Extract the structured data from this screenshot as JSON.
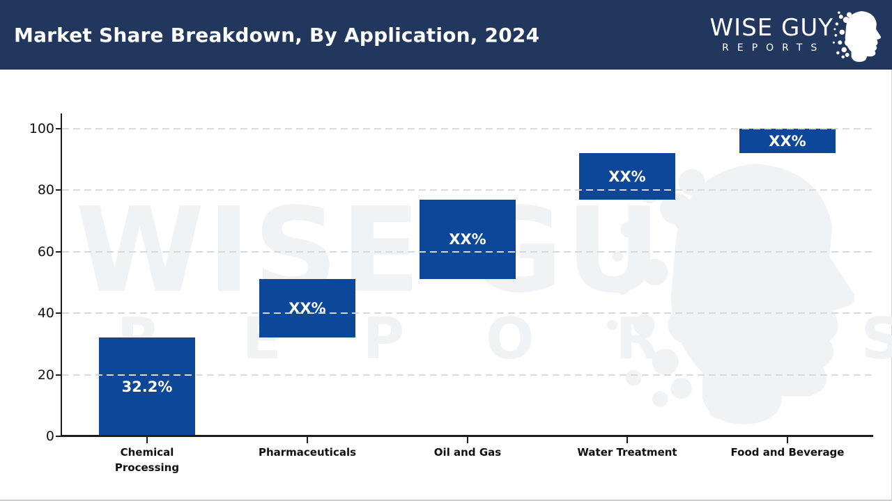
{
  "header": {
    "title": "Market Share Breakdown, By Application, 2024",
    "logo": {
      "name": "WISE GUY",
      "sub": "REPORTS"
    }
  },
  "watermark": {
    "text_top": "WISE GUY",
    "text_bottom": "R E P O R T S"
  },
  "colors": {
    "header_bg": "#21375e",
    "bar": "#0c4799",
    "bar_label": "#ffffff",
    "grid": "#d9d9d9",
    "axis": "#1c1c1c",
    "watermark": "#f1f2f4"
  },
  "chart_data": {
    "type": "bar",
    "variant": "floating-waterfall",
    "title": "Market Share Breakdown, By Application, 2024",
    "categories": [
      "Chemical Processing",
      "Pharmaceuticals",
      "Oil and Gas",
      "Water Treatment",
      "Food and Beverage"
    ],
    "categories_display": [
      "Chemical\nProcessing",
      "Pharmaceuticals",
      "Oil and Gas",
      "Water Treatment",
      "Food and Beverage"
    ],
    "segments": [
      {
        "category": "Chemical Processing",
        "start": 0,
        "end": 32.2,
        "label": "32.2%"
      },
      {
        "category": "Pharmaceuticals",
        "start": 32.2,
        "end": 51.2,
        "label": "XX%"
      },
      {
        "category": "Oil and Gas",
        "start": 51.2,
        "end": 76.9,
        "label": "XX%"
      },
      {
        "category": "Water Treatment",
        "start": 76.9,
        "end": 92.0,
        "label": "XX%"
      },
      {
        "category": "Food and Beverage",
        "start": 92.0,
        "end": 100.0,
        "label": "XX%"
      }
    ],
    "xlabel": "",
    "ylabel": "",
    "yticks": [
      0,
      20,
      40,
      60,
      80,
      100
    ],
    "ylim": [
      0,
      105
    ],
    "grid": "horizontal dashed, drawn above bars",
    "legend": "none"
  }
}
